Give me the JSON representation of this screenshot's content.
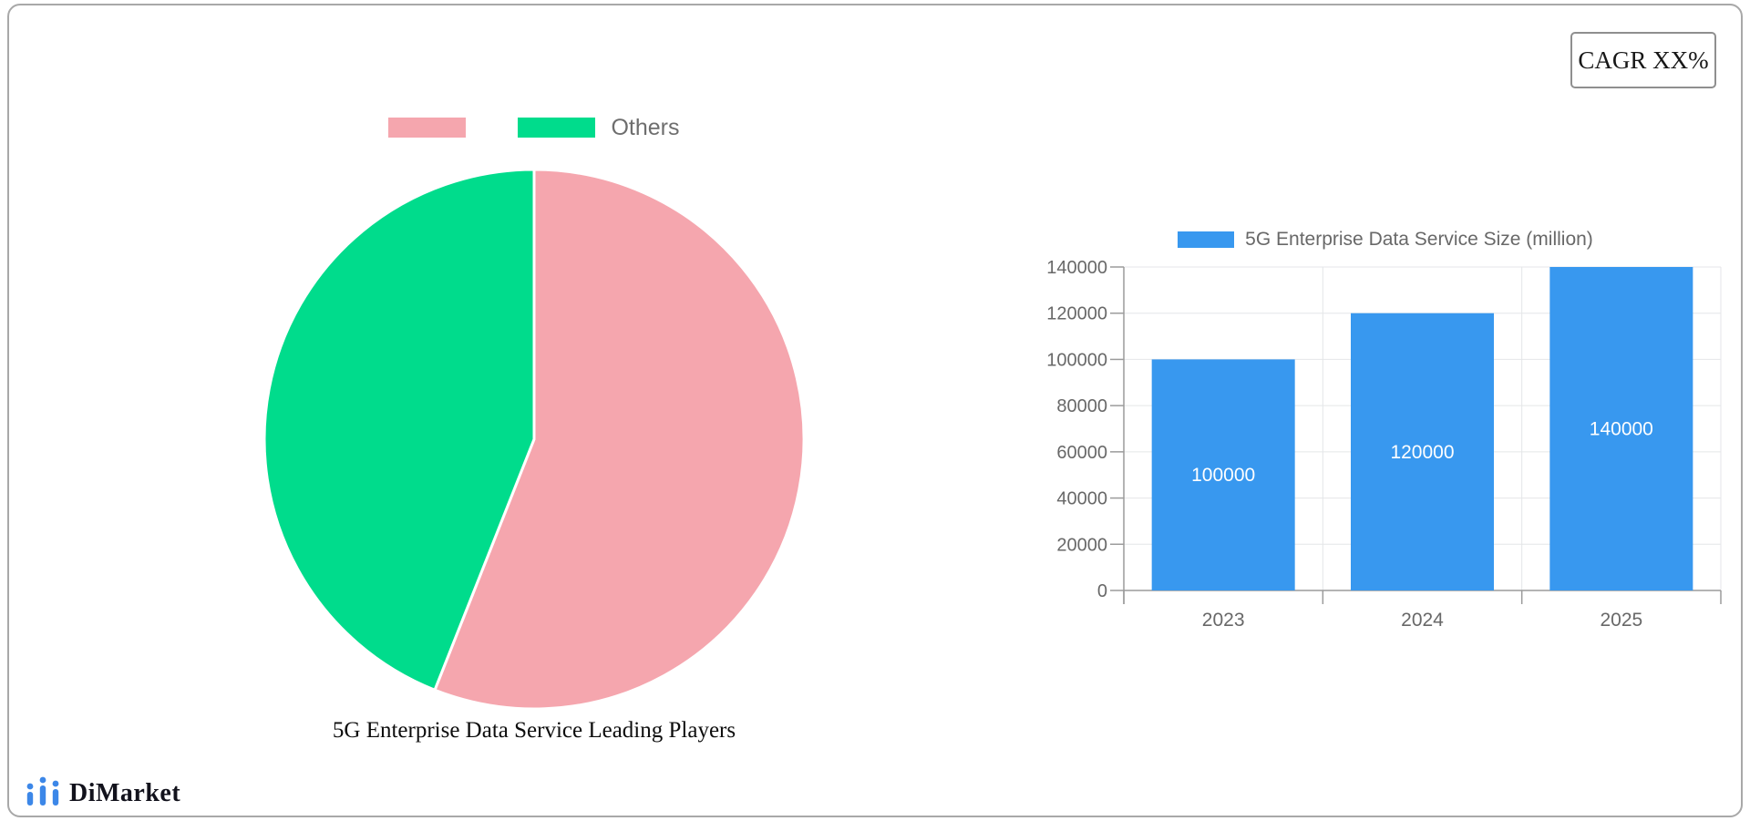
{
  "cagr_box": {
    "label": "CAGR XX%"
  },
  "branding": {
    "name": "DiMarket",
    "logo_color": "#3c87e8"
  },
  "chart_data": [
    {
      "type": "pie",
      "title": "5G Enterprise Data Service Leading Players",
      "legend_position": "top",
      "direction": "clockwise",
      "start_angle": "12 o'clock",
      "slices": [
        {
          "label": "",
          "value": 56,
          "color": "#f5a6ae"
        },
        {
          "label": "Others",
          "value": 44,
          "color": "#00dc8c"
        }
      ]
    },
    {
      "type": "bar",
      "title": "",
      "xlabel": "",
      "ylabel": "",
      "categories": [
        "2023",
        "2024",
        "2025"
      ],
      "series": [
        {
          "name": "5G Enterprise Data Service Size (million)",
          "values": [
            100000,
            120000,
            140000
          ],
          "color": "#3898ef"
        }
      ],
      "bar_value_labels": [
        "100000",
        "120000",
        "140000"
      ],
      "bar_value_label_color": "#ffffff",
      "ylim": [
        0,
        140000
      ],
      "yticks": [
        0,
        20000,
        40000,
        60000,
        80000,
        100000,
        120000,
        140000
      ],
      "grid": true,
      "legend_position": "top",
      "axis_color": "#9b9b9b",
      "grid_color": "#e4e6e8",
      "tick_label_color": "#686868"
    }
  ]
}
